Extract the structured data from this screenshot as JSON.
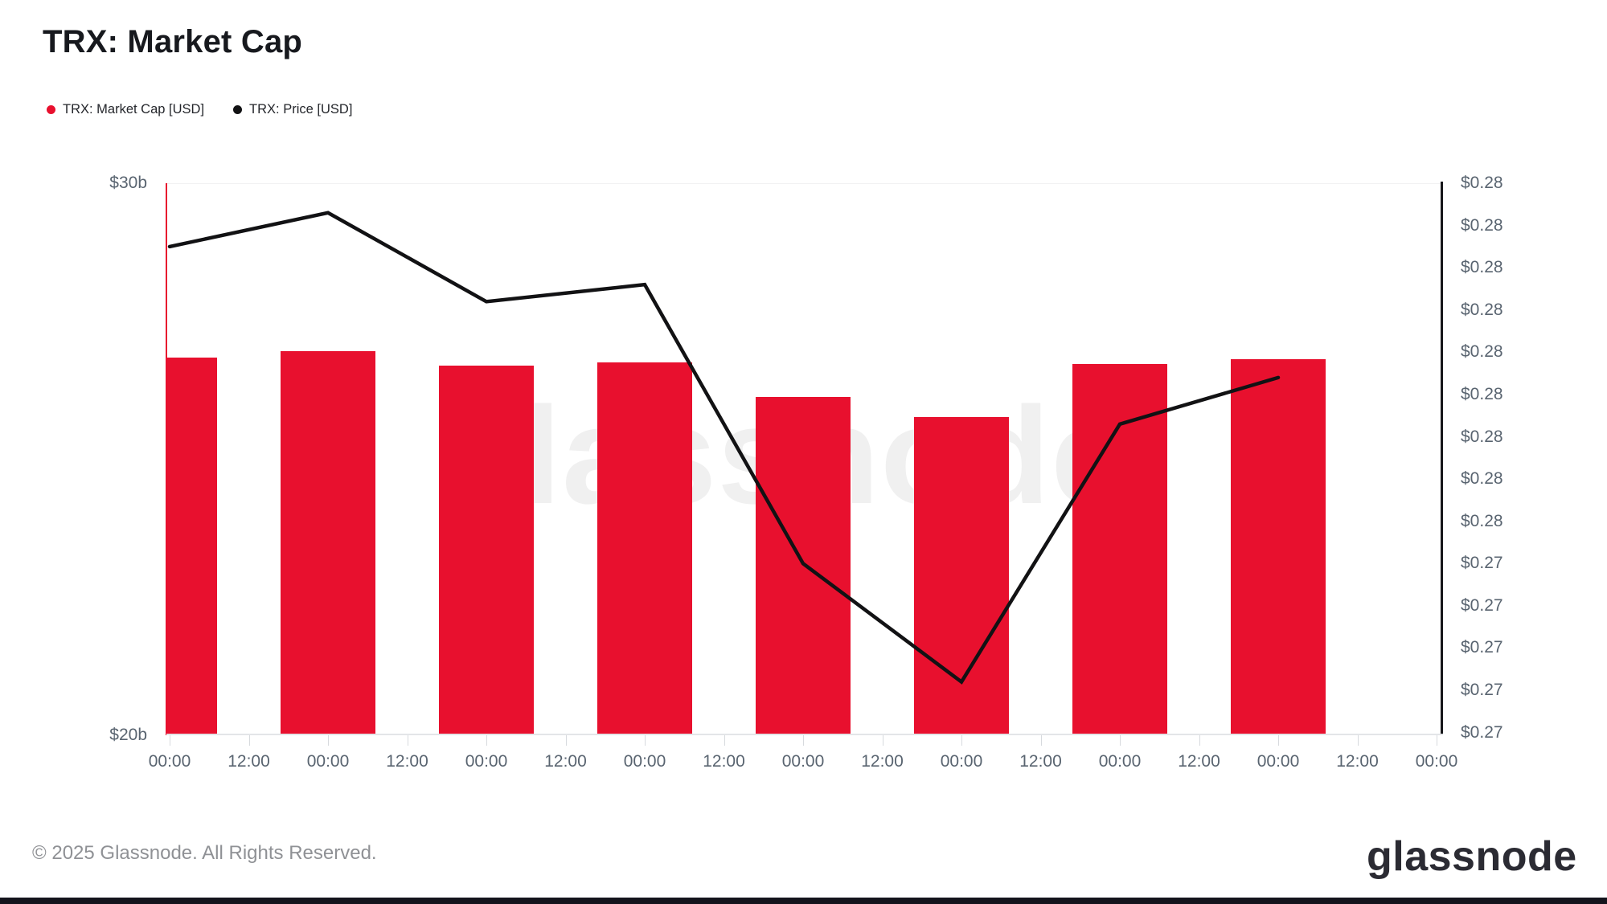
{
  "header": {
    "title": "TRX: Market Cap"
  },
  "legend": {
    "items": [
      {
        "label": "TRX: Market Cap [USD]",
        "color": "#e8102e"
      },
      {
        "label": "TRX: Price [USD]",
        "color": "#121214"
      }
    ]
  },
  "watermark": {
    "text": "glassnode"
  },
  "footer": {
    "copyright": "© 2025 Glassnode. All Rights Reserved.",
    "logo_text": "glassnode"
  },
  "chart_data": {
    "type": "bar+line dual-axis time series",
    "title": "TRX: Market Cap",
    "grid": "minimal (top gridline only)",
    "legend_position": "top-left",
    "x_axis": {
      "tick_labels": [
        "00:00",
        "12:00",
        "00:00",
        "12:00",
        "00:00",
        "12:00",
        "00:00",
        "12:00",
        "00:00",
        "12:00",
        "00:00",
        "12:00",
        "00:00",
        "12:00",
        "00:00",
        "12:00",
        "00:00"
      ],
      "note": "ticks every 12 hours over 8 full days; bars plotted daily at 00:00; final 00:00 interval has no bar"
    },
    "y_axis_left": {
      "series": "TRX: Market Cap [USD]",
      "tick_labels": [
        "$30b",
        "$20b"
      ],
      "tick_values_billions": [
        30,
        20
      ],
      "range_billions": [
        20,
        30
      ]
    },
    "y_axis_right": {
      "series": "TRX: Price [USD]",
      "tick_labels": [
        "$0.28",
        "$0.28",
        "$0.28",
        "$0.28",
        "$0.28",
        "$0.28",
        "$0.28",
        "$0.28",
        "$0.28",
        "$0.27",
        "$0.27",
        "$0.27",
        "$0.27",
        "$0.27"
      ],
      "tick_values": [
        0.284,
        0.283,
        0.282,
        0.281,
        0.28,
        0.279,
        0.278,
        0.277,
        0.276,
        0.275,
        0.274,
        0.273,
        0.272,
        0.271
      ],
      "range": [
        0.271,
        0.284
      ]
    },
    "series": [
      {
        "name": "TRX: Market Cap [USD]",
        "type": "bar",
        "axis": "left",
        "color": "#e8102e",
        "unit": "USD billions",
        "day_index": [
          0,
          1,
          2,
          3,
          4,
          5,
          6,
          7
        ],
        "values": [
          26.84,
          26.96,
          26.7,
          26.75,
          26.13,
          25.76,
          26.73,
          26.81
        ]
      },
      {
        "name": "TRX: Price [USD]",
        "type": "line",
        "axis": "right",
        "color": "#121214",
        "unit": "USD",
        "day_index": [
          0,
          1,
          2,
          3,
          4,
          5,
          6,
          7
        ],
        "values": [
          0.2825,
          0.2833,
          0.2812,
          0.2816,
          0.275,
          0.2722,
          0.2783,
          0.2794
        ]
      }
    ]
  }
}
